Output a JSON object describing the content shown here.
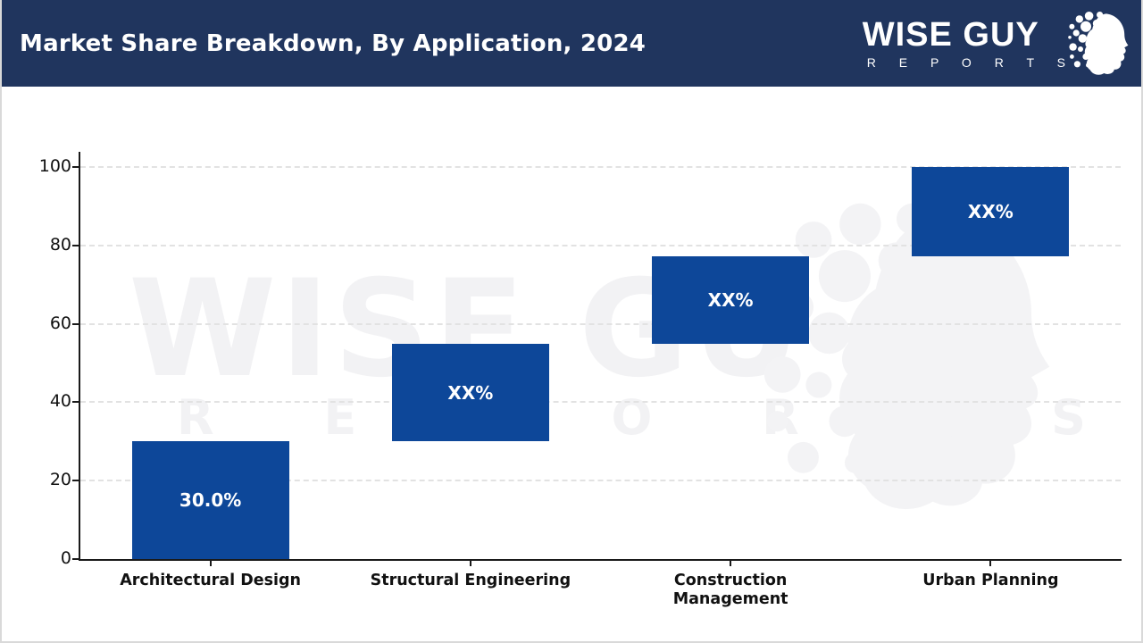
{
  "header": {
    "title": "Market Share Breakdown, By Application, 2024",
    "bg_color": "#20355e",
    "logo": {
      "line1": "WISE GUY",
      "line2": "R E P O R T S"
    }
  },
  "watermark": {
    "line1": "WISE GU",
    "line2": "R E P O R T S"
  },
  "chart_data": {
    "type": "bar",
    "subtype": "waterfall-floating-bars",
    "title": "Market Share Breakdown, By Application, 2024",
    "xlabel": "",
    "ylabel": "",
    "ylim": [
      0,
      100
    ],
    "yticks": [
      0,
      20,
      40,
      60,
      80,
      100
    ],
    "grid": "horizontal-dashed",
    "legend": "none",
    "bar_color": "#0d4799",
    "bar_label_color": "#ffffff",
    "categories": [
      "Architectural Design",
      "Structural Engineering",
      "Construction Management",
      "Urban Planning"
    ],
    "bars": [
      {
        "category": "Architectural Design",
        "start": 0,
        "end": 30,
        "label": "30.0%"
      },
      {
        "category": "Structural Engineering",
        "start": 30,
        "end": 54.8,
        "label": "XX%"
      },
      {
        "category": "Construction Management",
        "start": 54.8,
        "end": 77.2,
        "label": "XX%"
      },
      {
        "category": "Urban Planning",
        "start": 77.2,
        "end": 100,
        "label": "XX%"
      }
    ]
  }
}
